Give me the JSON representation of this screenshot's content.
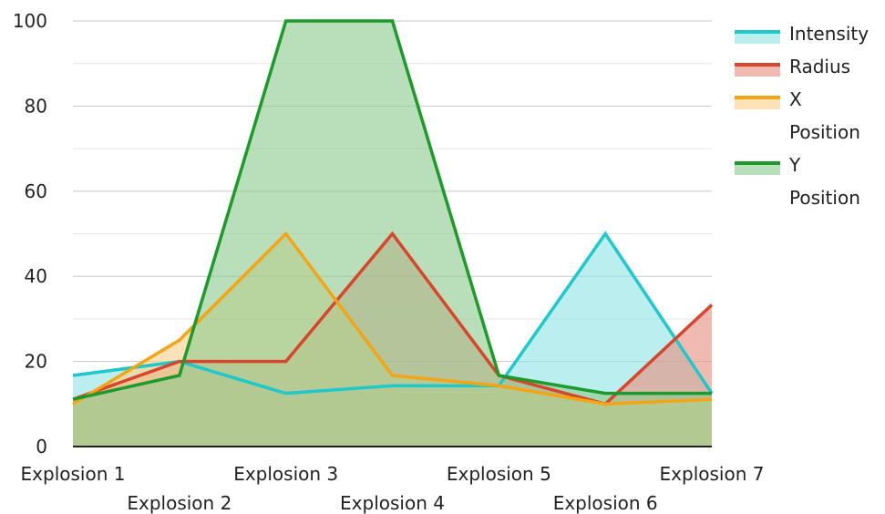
{
  "chart_data": {
    "type": "area",
    "categories": [
      "Explosion 1",
      "Explosion 2",
      "Explosion 3",
      "Explosion 4",
      "Explosion 5",
      "Explosion 6",
      "Explosion 7"
    ],
    "ylim": [
      0,
      100
    ],
    "yticks": [
      0,
      20,
      40,
      60,
      80,
      100
    ],
    "grid": true,
    "legend_position": "right",
    "series": [
      {
        "name": "Intensity",
        "color": "#1ec8cc",
        "fill": "#8fe3e5",
        "values": [
          16.7,
          20,
          12.5,
          14.3,
          14.3,
          50,
          12.5
        ]
      },
      {
        "name": "Radius",
        "color": "#d9452b",
        "fill": "#e88f80",
        "values": [
          11.1,
          20,
          20,
          50,
          16.7,
          10,
          33.3
        ]
      },
      {
        "name": "X Position",
        "color": "#f5a413",
        "fill": "#fbd18a",
        "values": [
          10,
          25,
          50,
          16.7,
          14.3,
          10,
          11.1
        ]
      },
      {
        "name": "Y Position",
        "color": "#1c9a2a",
        "fill": "#8ecb8f",
        "values": [
          11.1,
          16.7,
          100,
          100,
          16.7,
          12.5,
          12.5
        ]
      }
    ]
  }
}
